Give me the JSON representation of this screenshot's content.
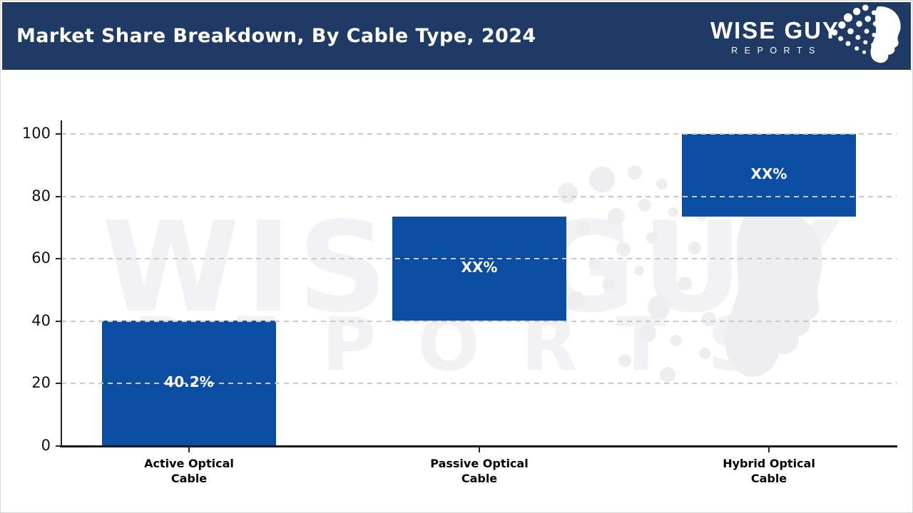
{
  "page": {
    "background": "#ffffff",
    "frame_border": "#d6d6d6"
  },
  "header": {
    "bg_color": "#1f3a64",
    "title": "Market Share Breakdown, By Cable Type, 2024",
    "logo": {
      "wordmark": "WISE GUY",
      "tagline": "REPORTS"
    }
  },
  "watermark": {
    "wordmark": "WISE GUY",
    "tagline": "REPORTS"
  },
  "chart_data": {
    "type": "bar",
    "variant": "waterfall",
    "title": "Market Share Breakdown, By Cable Type, 2024",
    "categories": [
      "Active Optical Cable",
      "Passive Optical Cable",
      "Hybrid Optical Cable"
    ],
    "series": [
      {
        "name": "Market share (%)",
        "segments": [
          {
            "category": "Active Optical Cable",
            "start": 0,
            "end": 40.2,
            "label": "40.2%"
          },
          {
            "category": "Passive Optical Cable",
            "start": 40.2,
            "end": 73.5,
            "label": "XX%"
          },
          {
            "category": "Hybrid Optical Cable",
            "start": 73.5,
            "end": 100,
            "label": "XX%"
          }
        ]
      }
    ],
    "xlabel": "",
    "ylabel": "",
    "ylim": [
      0,
      100
    ],
    "yticks": [
      0,
      20,
      40,
      60,
      80,
      100
    ],
    "grid": {
      "axis": "y",
      "style": "dashed",
      "color": "#c9c9c9",
      "above_bars": true
    },
    "legend": "none",
    "bar_color": "#0b4da2",
    "bar_label_color": "#ffffff",
    "axis_color": "#262626",
    "tick_label_color": "#111111"
  }
}
